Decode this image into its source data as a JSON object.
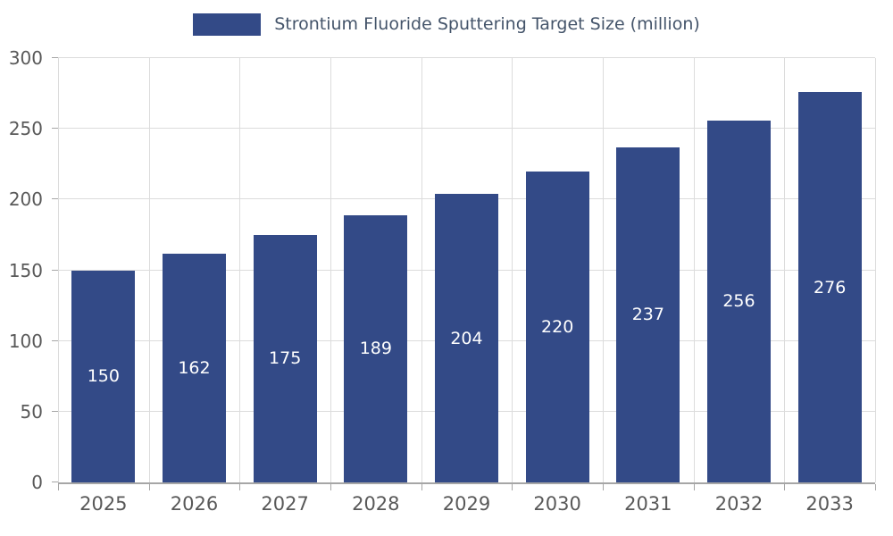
{
  "chart_data": {
    "type": "bar",
    "title": "Strontium Fluoride Sputtering Target Size (million)",
    "categories": [
      "2025",
      "2026",
      "2027",
      "2028",
      "2029",
      "2030",
      "2031",
      "2032",
      "2033"
    ],
    "values": [
      150,
      162,
      175,
      189,
      204,
      220,
      237,
      256,
      276
    ],
    "xlabel": "",
    "ylabel": "",
    "ylim": [
      0,
      300
    ],
    "yticks": [
      0,
      50,
      100,
      150,
      200,
      250,
      300
    ],
    "grid": true,
    "legend_position": "top-center",
    "bar_color": "#334a87",
    "value_label_color": "#ffffff",
    "axis_text_color": "#595959",
    "grid_color": "#dcdcdc"
  }
}
